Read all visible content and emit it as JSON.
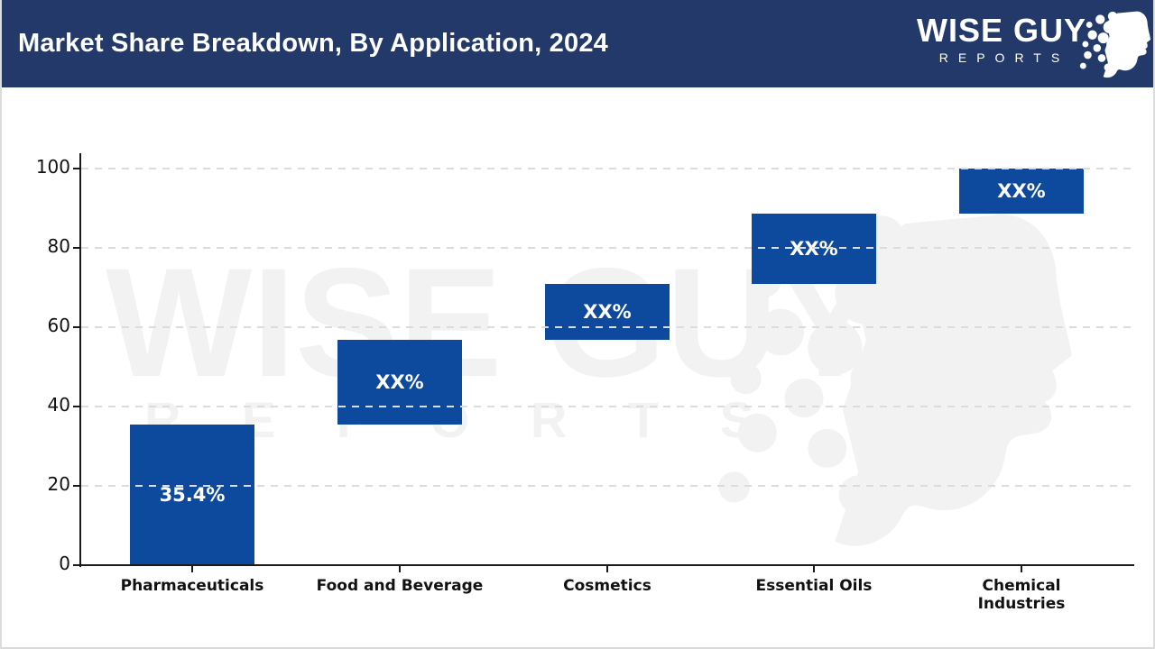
{
  "header": {
    "title": "Market Share Breakdown, By Application, 2024",
    "logo": {
      "brand_line1": "WISE GUY",
      "brand_line2": "REPORTS"
    }
  },
  "watermark": {
    "line1": "WISE GUY",
    "line2": "R E P O R T S"
  },
  "chart_data": {
    "type": "bar",
    "variant": "waterfall",
    "title": "Market Share Breakdown, By Application, 2024",
    "categories": [
      "Pharmaceuticals",
      "Food and Beverage",
      "Cosmetics",
      "Essential Oils",
      "Chemical\nIndustries"
    ],
    "segments": [
      {
        "category": "Pharmaceuticals",
        "start": 0,
        "end": 35.4,
        "label": "35.4%"
      },
      {
        "category": "Food and Beverage",
        "start": 35.4,
        "end": 56.8,
        "label": "XX%"
      },
      {
        "category": "Cosmetics",
        "start": 56.8,
        "end": 70.9,
        "label": "XX%"
      },
      {
        "category": "Essential Oils",
        "start": 70.9,
        "end": 88.6,
        "label": "XX%"
      },
      {
        "category": "Chemical\nIndustries",
        "start": 88.6,
        "end": 100,
        "label": "XX%"
      }
    ],
    "yticks": [
      0,
      20,
      40,
      60,
      80,
      100
    ],
    "ylim": [
      0,
      105
    ],
    "xlabel": "",
    "ylabel": "",
    "legend": null,
    "grid": "horizontal-dashed",
    "colors": {
      "bar": "#0D4A9E",
      "value_label": "#FFFFFF",
      "axis": "#1A1A1A",
      "gridline": "#DCDCDC",
      "header_bg": "#22396A",
      "watermark": "#F2F2F2"
    }
  }
}
